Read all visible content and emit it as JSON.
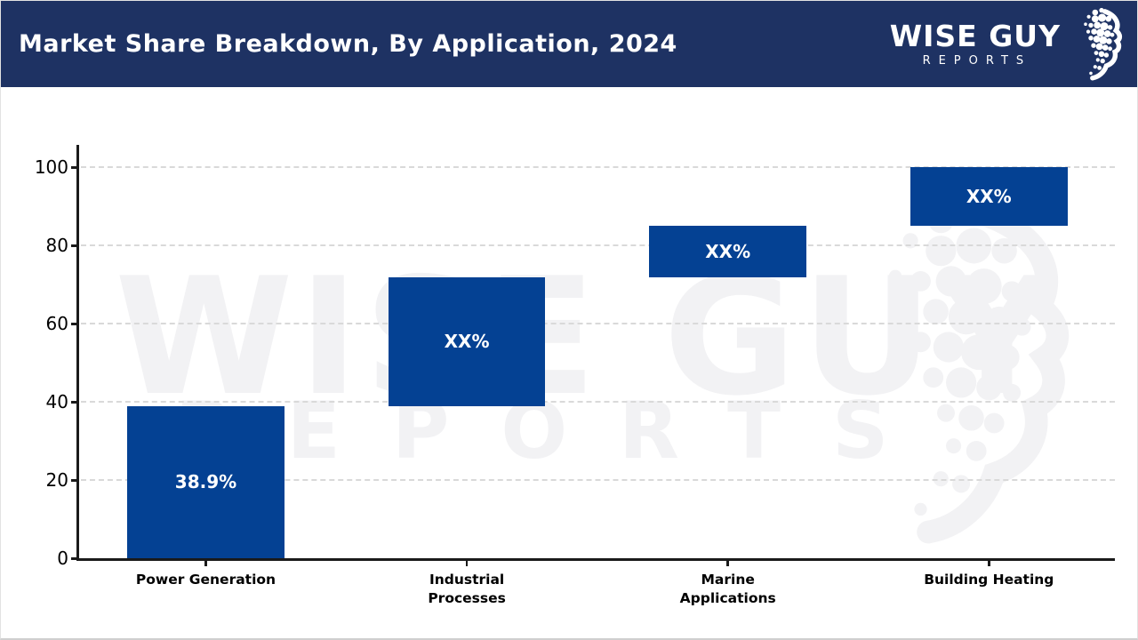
{
  "header": {
    "title": "Market Share Breakdown, By Application, 2024",
    "logo_line1": "WISE GUY",
    "logo_line2": "REPORTS"
  },
  "watermark": {
    "line1": "WISE GUY",
    "line2": "REPORTS"
  },
  "colors": {
    "header_bg": "#1e3263",
    "bar_fill": "#044193",
    "bar_label": "#ffffff",
    "grid": "#d9d9d9",
    "axis": "#1a1a1a",
    "watermark": "#f2f2f4"
  },
  "chart_data": {
    "type": "bar",
    "subtype": "floating-waterfall",
    "title": "Market Share Breakdown, By Application, 2024",
    "categories": [
      "Power Generation",
      "Industrial\nProcesses",
      "Marine\nApplications",
      "Building Heating"
    ],
    "bars": [
      {
        "category": "Power Generation",
        "start": 0,
        "end": 38.9,
        "label": "38.9%"
      },
      {
        "category": "Industrial\nProcesses",
        "start": 38.9,
        "end": 71.8,
        "label": "XX%"
      },
      {
        "category": "Marine\nApplications",
        "start": 71.8,
        "end": 85.0,
        "label": "XX%"
      },
      {
        "category": "Building Heating",
        "start": 85.0,
        "end": 100,
        "label": "XX%"
      }
    ],
    "yticks": [
      0,
      20,
      40,
      60,
      80,
      100
    ],
    "ylim": [
      0,
      105
    ],
    "xlabel": "",
    "ylabel": "",
    "grid": "horizontal-dashed",
    "legend": "none"
  }
}
